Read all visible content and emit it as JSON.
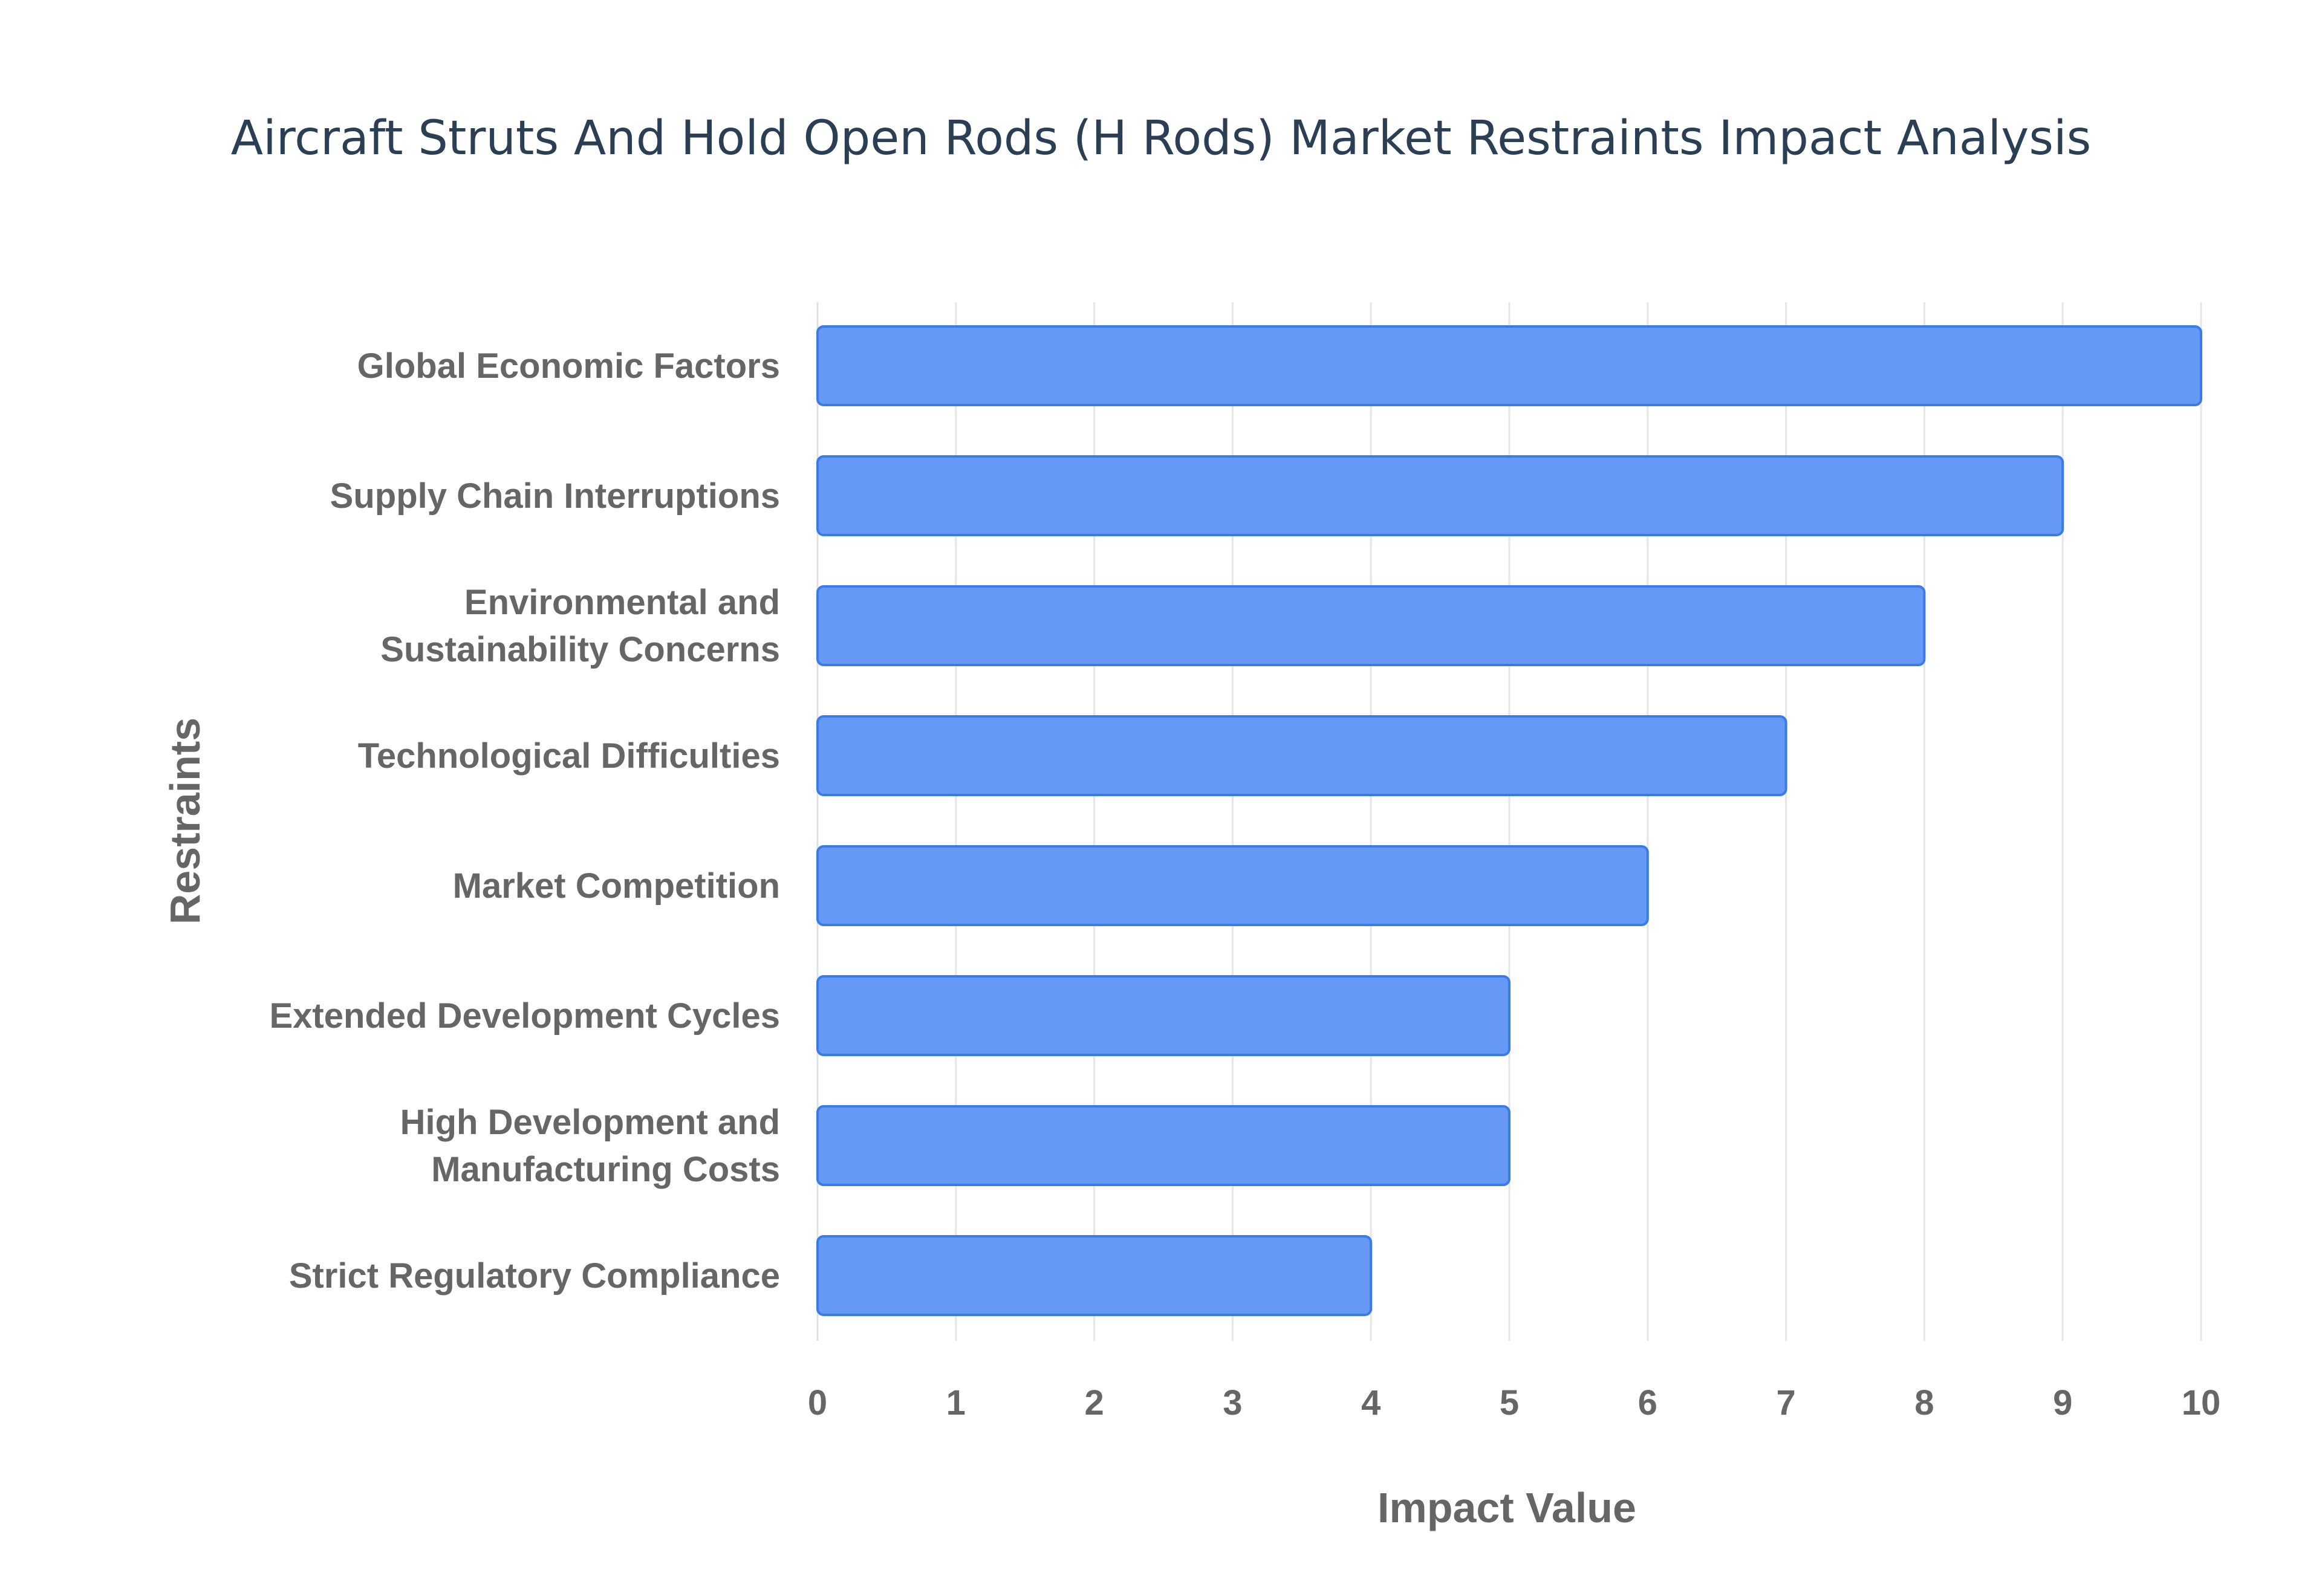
{
  "chart_data": {
    "type": "bar",
    "orientation": "horizontal",
    "title": "Aircraft Struts And Hold Open Rods (H Rods) Market Restraints Impact Analysis",
    "xlabel": "Impact Value",
    "ylabel": "Restraints",
    "categories": [
      [
        "Global Economic Factors"
      ],
      [
        "Supply Chain Interruptions"
      ],
      [
        "Environmental and",
        "Sustainability Concerns"
      ],
      [
        "Technological Difficulties"
      ],
      [
        "Market Competition"
      ],
      [
        "Extended Development Cycles"
      ],
      [
        "High Development and",
        "Manufacturing Costs"
      ],
      [
        "Strict Regulatory Compliance"
      ]
    ],
    "values": [
      10,
      9,
      8,
      7,
      6,
      5,
      5,
      4
    ],
    "xlim": [
      0,
      10
    ],
    "xticks": [
      "0",
      "1",
      "2",
      "3",
      "4",
      "5",
      "6",
      "7",
      "8",
      "9",
      "10"
    ],
    "grid": true,
    "legend": "none",
    "colors": {
      "bar_fill": "#6699f5",
      "bar_stroke": "#3b7be6",
      "grid": "#e6e6e6",
      "title": "#2a3f54",
      "label": "#666666"
    }
  }
}
